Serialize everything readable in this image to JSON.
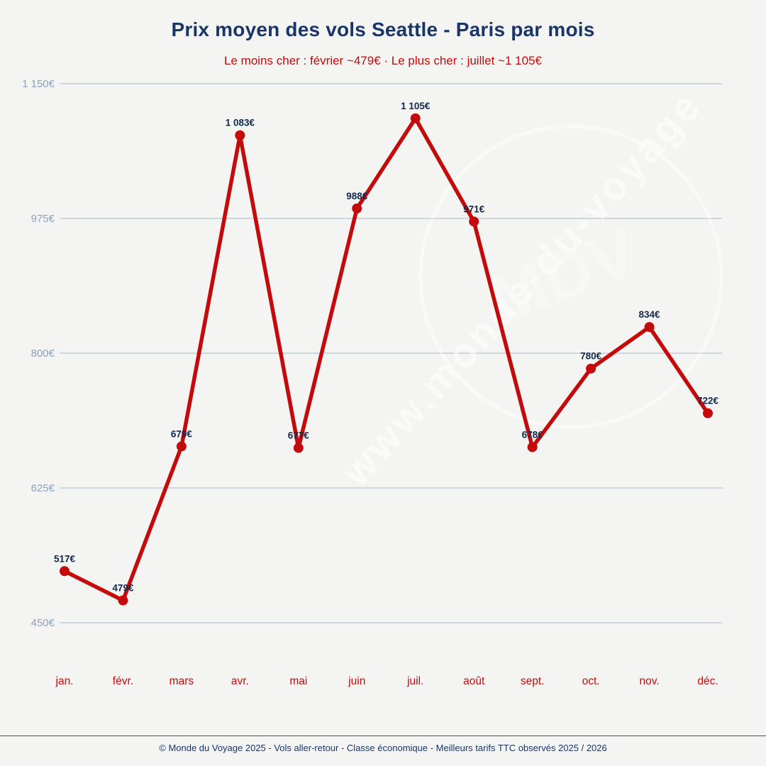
{
  "title": "Prix moyen des vols Seattle - Paris par mois",
  "subtitle": "Le moins cher : février ~479€ · Le plus cher : juillet ~1 105€",
  "footer": "© Monde du Voyage 2025 - Vols aller-retour - Classe économique - Meilleurs tarifs TTC observés 2025 / 2026",
  "watermark": {
    "diagonal_text": "www.monde-du-voyage",
    "badge": "MDV"
  },
  "colors": {
    "line": "#c40b0b",
    "point": "#c40b0b",
    "grid": "#b9c4d6",
    "ytick": "#8ba1bd",
    "xtick": "#c40b0b",
    "point_label": "#12294d",
    "watermark": "#ffffff"
  },
  "chart_data": {
    "type": "line",
    "title": "Prix moyen des vols Seattle - Paris par mois",
    "xlabel": "",
    "ylabel": "",
    "categories": [
      "jan.",
      "févr.",
      "mars",
      "avr.",
      "mai",
      "juin",
      "juil.",
      "août",
      "sept.",
      "oct.",
      "nov.",
      "déc."
    ],
    "values": [
      517,
      479,
      679,
      1083,
      677,
      988,
      1105,
      971,
      678,
      780,
      834,
      722
    ],
    "point_labels": [
      "517€",
      "479€",
      "679€",
      "1 083€",
      "677€",
      "988€",
      "1 105€",
      "971€",
      "678€",
      "780€",
      "834€",
      "722€"
    ],
    "yticks": [
      450,
      625,
      800,
      975,
      1150
    ],
    "ytick_labels": [
      "450€",
      "625€",
      "800€",
      "975€",
      "1 150€"
    ],
    "ylim": [
      450,
      1150
    ],
    "grid": "horizontal",
    "legend": "none"
  }
}
